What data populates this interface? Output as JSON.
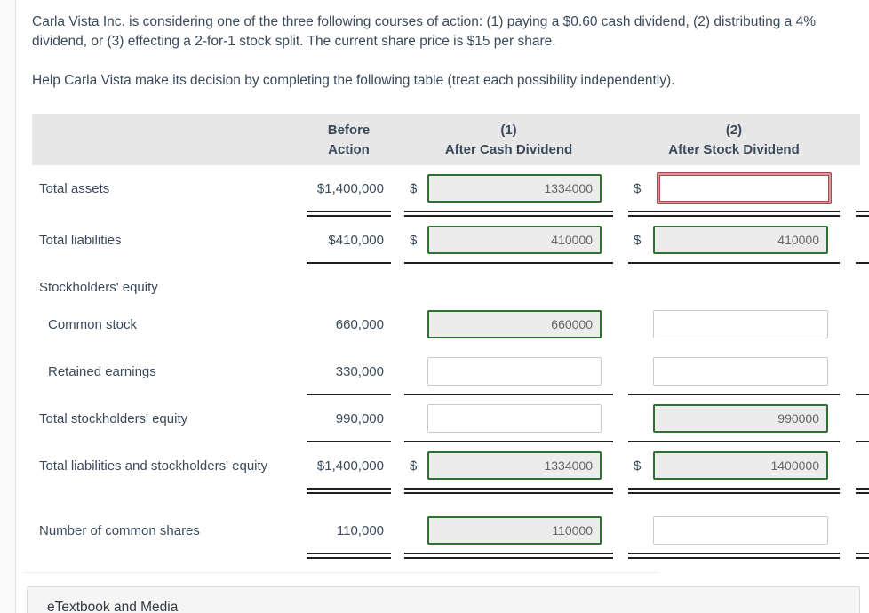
{
  "intro": {
    "paragraph1": "Carla Vista Inc. is considering one of the three following courses of action: (1) paying a $0.60 cash dividend, (2) distributing a 4% dividend, or (3) effecting a 2-for-1 stock split. The current share price is $15 per share.",
    "paragraph2": "Help Carla Vista make its decision by completing the following table (treat each possibility independently)."
  },
  "table": {
    "currency_symbol": "$",
    "header": {
      "before_line1": "Before",
      "before_line2": "Action",
      "col1_line1": "(1)",
      "col1_line2": "After Cash Dividend",
      "col2_line1": "(2)",
      "col2_line2": "After Stock Dividend"
    },
    "rows": [
      {
        "label": "Total assets",
        "before": "$1,400,000",
        "show_dollar": true,
        "col1": {
          "state": "filled",
          "value": "1334000"
        },
        "col2": {
          "state": "error",
          "value": ""
        },
        "rule": "double"
      },
      {
        "label": "Total liabilities",
        "before": "$410,000",
        "show_dollar": true,
        "col1": {
          "state": "filled",
          "value": "410000"
        },
        "col2": {
          "state": "filled",
          "value": "410000"
        },
        "rule": "single"
      },
      {
        "label": "Stockholders' equity",
        "type": "section"
      },
      {
        "label": "Common stock",
        "indent": true,
        "before": "660,000",
        "show_dollar": false,
        "col1": {
          "state": "filled",
          "value": "660000"
        },
        "col2": {
          "state": "empty",
          "value": ""
        },
        "rule": "none"
      },
      {
        "label": "Retained earnings",
        "indent": true,
        "before": "330,000",
        "show_dollar": false,
        "col1": {
          "state": "empty",
          "value": ""
        },
        "col2": {
          "state": "empty",
          "value": ""
        },
        "rule": "single"
      },
      {
        "label": "Total stockholders' equity",
        "before": "990,000",
        "show_dollar": false,
        "col1": {
          "state": "empty",
          "value": ""
        },
        "col2": {
          "state": "filled",
          "value": "990000"
        },
        "rule": "single"
      },
      {
        "label": "Total liabilities and stockholders' equity",
        "before": "$1,400,000",
        "show_dollar": true,
        "col1": {
          "state": "filled",
          "value": "1334000"
        },
        "col2": {
          "state": "filled",
          "value": "1400000"
        },
        "rule": "double"
      },
      {
        "label": "Number of common shares",
        "before": "110,000",
        "show_dollar": false,
        "gap_before": true,
        "col1": {
          "state": "filled",
          "value": "110000"
        },
        "col2": {
          "state": "empty",
          "value": ""
        },
        "rule": "double"
      }
    ]
  },
  "footer": {
    "etextbook_label": "eTextbook and Media"
  },
  "colors": {
    "slate_text": "#3a4a5c",
    "header_bg": "#e7e7e7",
    "filled_bg": "#ececec",
    "filled_border": "#2f7033",
    "empty_border": "#cbcbcb",
    "error_border": "#a5494d",
    "error_ring": "#d9999c",
    "rule_color": "#1f1f1f",
    "input_text": "#666666",
    "bar_bg": "#f5f5f5",
    "bar_border": "#d8d8d8",
    "divider": "#ececec",
    "gutter_border": "#e2e2e2"
  }
}
